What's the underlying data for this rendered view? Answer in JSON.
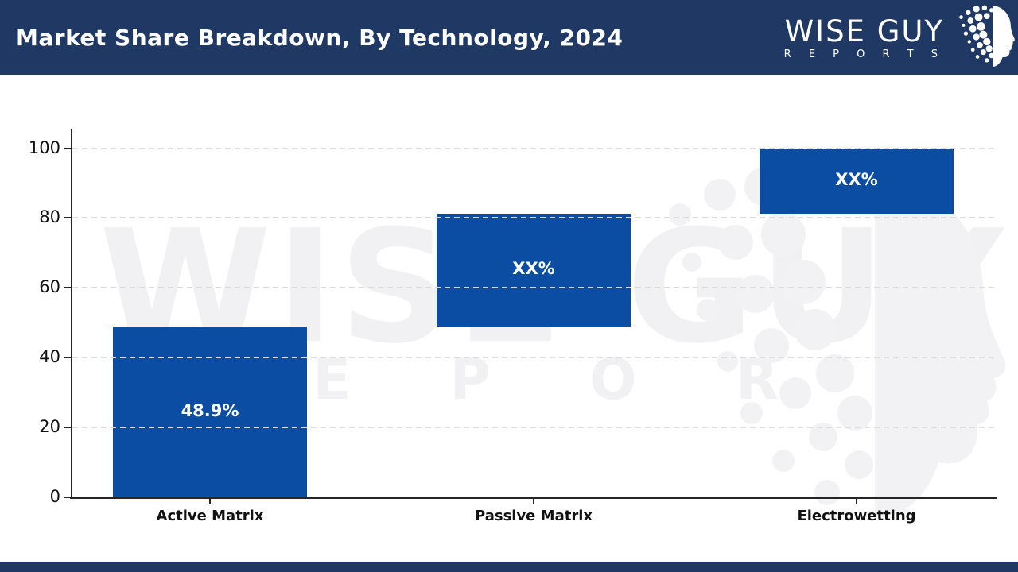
{
  "header": {
    "title": "Market Share Breakdown, By Technology, 2024",
    "logo": {
      "line1": "WISE GUY",
      "line2": "R E P O R T S"
    }
  },
  "watermark": {
    "line1": "WISE GUY",
    "line2": "R E P O R T S"
  },
  "colors": {
    "header_bg": "#1F3864",
    "bar": "#0B4DA2",
    "grid": "#DCDCDC",
    "axis": "#262626",
    "watermark": "#F1F1F4",
    "bar_label": "#FFFFFF"
  },
  "chart_data": {
    "type": "bar",
    "subtype": "waterfall",
    "title": "Market Share Breakdown, By Technology, 2024",
    "categories": [
      "Active Matrix",
      "Passive Matrix",
      "Electrowetting"
    ],
    "segments": [
      {
        "category": "Active Matrix",
        "start": 0,
        "end": 48.9,
        "label": "48.9%"
      },
      {
        "category": "Passive Matrix",
        "start": 48.9,
        "end": 81.3,
        "label": "XX%"
      },
      {
        "category": "Electrowetting",
        "start": 81.3,
        "end": 100,
        "label": "XX%"
      }
    ],
    "y_ticks": [
      0,
      20,
      40,
      60,
      80,
      100
    ],
    "ylim": [
      0,
      100
    ],
    "xlabel": "",
    "ylabel": "",
    "grid": "dashed-horizontal",
    "legend": "none",
    "bar_color": "#0B4DA2"
  }
}
